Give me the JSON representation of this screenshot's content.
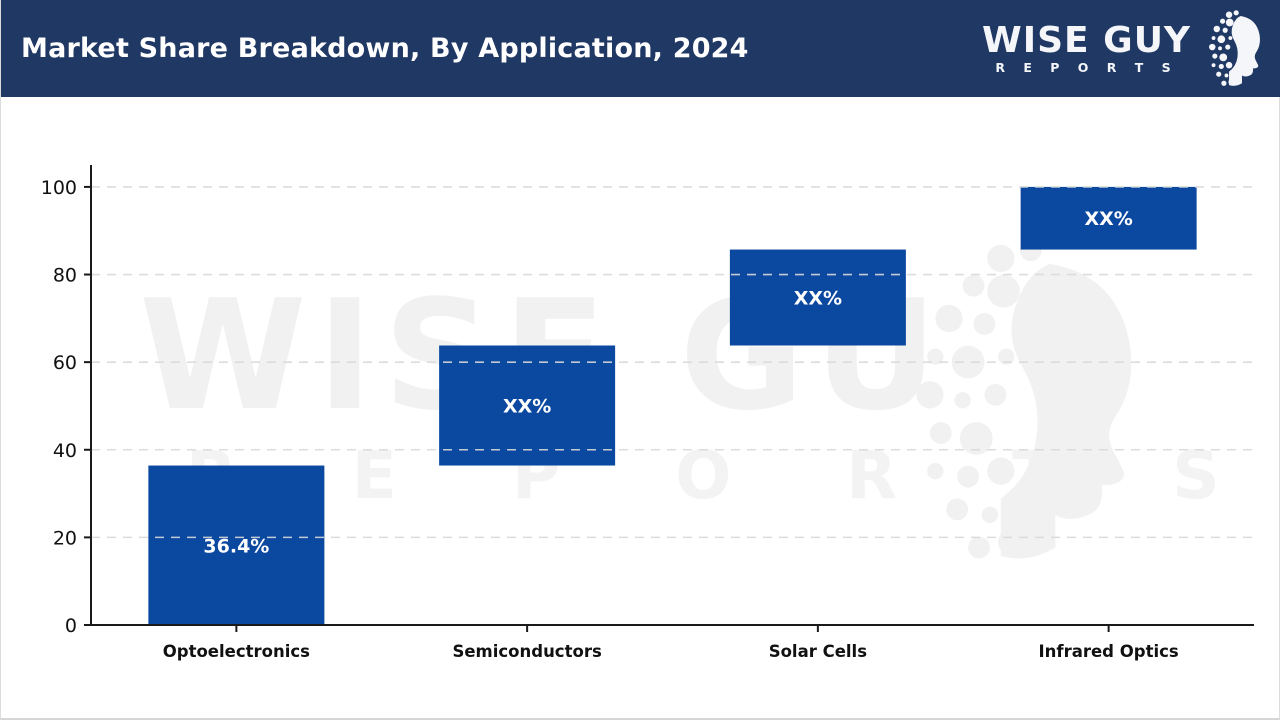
{
  "header": {
    "title": "Market Share Breakdown, By Application, 2024",
    "logo": {
      "brand": "WISE GUY",
      "sub": "R E P O R T S"
    }
  },
  "watermark": {
    "line1": "WISE GU",
    "line2": "R E P O R T S"
  },
  "chart_data": {
    "type": "bar",
    "subtype": "waterfall",
    "title": "Market Share Breakdown, By Application, 2024",
    "categories": [
      "Optoelectronics",
      "Semiconductors",
      "Solar Cells",
      "Infrared Optics"
    ],
    "segments": [
      {
        "category": "Optoelectronics",
        "start": 0,
        "end": 36.4,
        "label": "36.4%"
      },
      {
        "category": "Semiconductors",
        "start": 36.4,
        "end": 63.8,
        "label": "XX%"
      },
      {
        "category": "Solar Cells",
        "start": 63.8,
        "end": 85.7,
        "label": "XX%"
      },
      {
        "category": "Infrared Optics",
        "start": 85.7,
        "end": 100,
        "label": "XX%"
      }
    ],
    "xlabel": "",
    "ylabel": "",
    "ylim": [
      0,
      105
    ],
    "yticks": [
      0,
      20,
      40,
      60,
      80,
      100
    ],
    "grid": "horizontal-dashed",
    "legend": "none",
    "colors": {
      "bar": "#0b48a0",
      "bar_label": "#ffffff",
      "axis": "#1a1a1a",
      "grid": "#d9d9d9",
      "header_bg": "#203864"
    }
  }
}
